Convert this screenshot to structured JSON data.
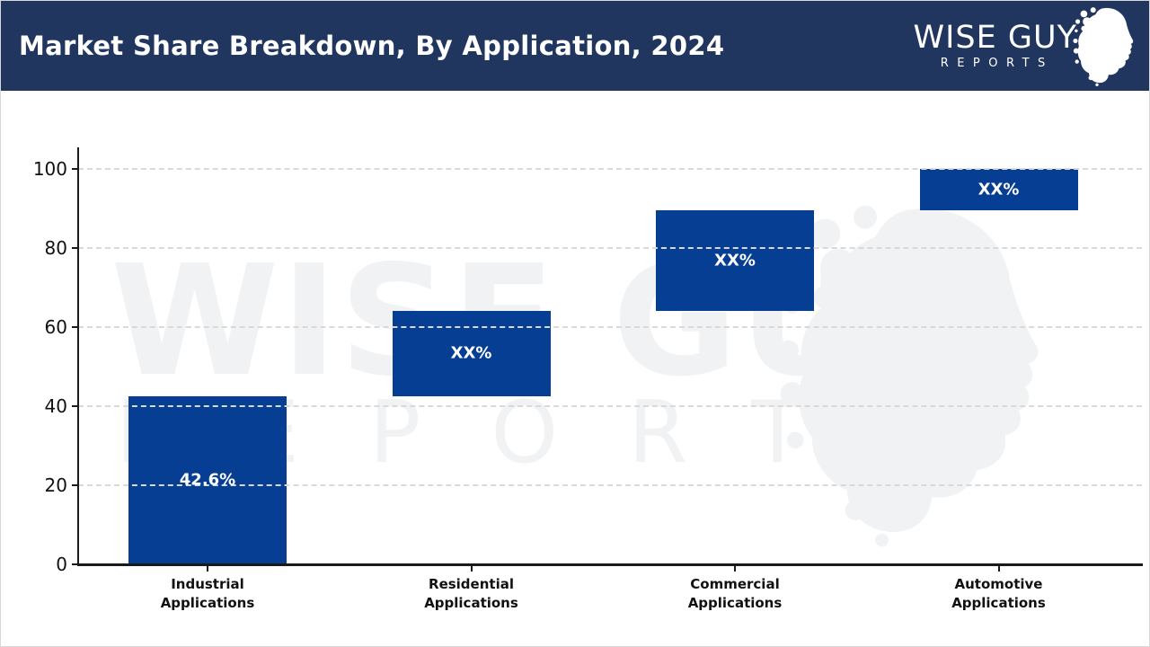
{
  "header": {
    "title": "Market Share Breakdown, By Application, 2024",
    "logo": {
      "line1": "WISE GUY",
      "line2": "REPORTS"
    }
  },
  "watermark": {
    "line1": "WISE GUY",
    "line2": "REPORTS"
  },
  "chart_data": {
    "type": "bar",
    "subtype": "waterfall",
    "title": "Market Share Breakdown, By Application, 2024",
    "ylabel": "",
    "xlabel": "",
    "ylim": [
      0,
      105.5
    ],
    "yticks": [
      0,
      20,
      40,
      60,
      80,
      100
    ],
    "grid": "horizontal-dashed",
    "legend": "none",
    "bars": [
      {
        "category": "Industrial Applications",
        "label_lines": [
          "Industrial",
          "Applications"
        ],
        "start": 0,
        "end": 42.6,
        "value_label": "42.6%"
      },
      {
        "category": "Residential Applications",
        "label_lines": [
          "Residential",
          "Applications"
        ],
        "start": 42.6,
        "end": 64.1,
        "value_label": "XX%"
      },
      {
        "category": "Commercial Applications",
        "label_lines": [
          "Commercial",
          "Applications"
        ],
        "start": 64.1,
        "end": 89.5,
        "value_label": "XX%"
      },
      {
        "category": "Automotive Applications",
        "label_lines": [
          "Automotive",
          "Applications"
        ],
        "start": 89.5,
        "end": 100,
        "value_label": "XX%"
      }
    ],
    "colors": {
      "bar": "#063e94",
      "bar_label": "#ffffff",
      "grid": "#d9d9d9",
      "axis": "#1a1a1a",
      "header_bg": "#21365f",
      "watermark": "#f1f2f4"
    }
  }
}
